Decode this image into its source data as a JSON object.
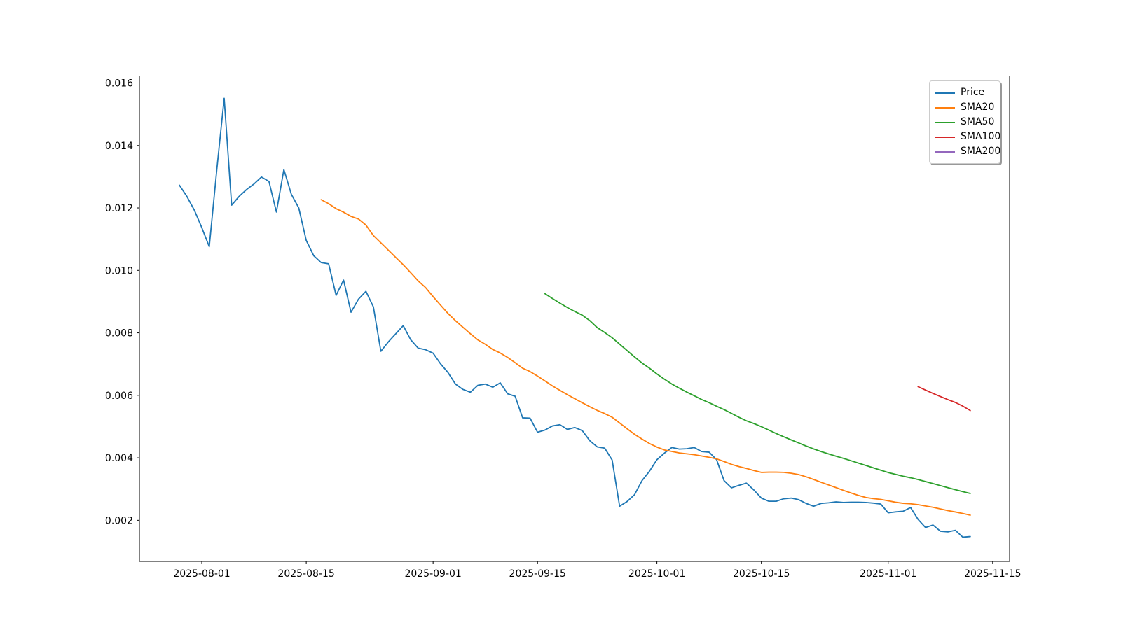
{
  "figure": {
    "background_color": "#ffffff",
    "axes_edge_color": "#000000",
    "tick_color": "#000000"
  },
  "legend": {
    "position": "upper-right",
    "entries": [
      {
        "label": "Price",
        "color": "#1f77b4"
      },
      {
        "label": "SMA20",
        "color": "#ff7f0e"
      },
      {
        "label": "SMA50",
        "color": "#2ca02c"
      },
      {
        "label": "SMA100",
        "color": "#d62728"
      },
      {
        "label": "SMA200",
        "color": "#9467bd"
      }
    ]
  },
  "chart_data": {
    "type": "line",
    "title": "",
    "xlabel": "",
    "ylabel": "",
    "grid": false,
    "legend_position": "upper-right",
    "x_axis": {
      "tick_labels": [
        "2025-08-01",
        "2025-08-15",
        "2025-09-01",
        "2025-09-15",
        "2025-10-01",
        "2025-10-15",
        "2025-11-01",
        "2025-11-15"
      ],
      "tick_indices": [
        3,
        17,
        34,
        48,
        64,
        78,
        95,
        109
      ],
      "lim_index": [
        -5.36,
        111.27
      ]
    },
    "y_axis": {
      "tick_labels": [
        "0.002",
        "0.004",
        "0.006",
        "0.008",
        "0.010",
        "0.012",
        "0.014",
        "0.016"
      ],
      "tick_values": [
        0.002,
        0.004,
        0.006,
        0.008,
        0.01,
        0.012,
        0.014,
        0.016
      ],
      "lim": [
        0.000686,
        0.016224
      ]
    },
    "dates": [
      "2025-07-29",
      "2025-07-30",
      "2025-07-31",
      "2025-08-01",
      "2025-08-02",
      "2025-08-03",
      "2025-08-04",
      "2025-08-05",
      "2025-08-06",
      "2025-08-07",
      "2025-08-08",
      "2025-08-09",
      "2025-08-10",
      "2025-08-11",
      "2025-08-12",
      "2025-08-13",
      "2025-08-14",
      "2025-08-15",
      "2025-08-16",
      "2025-08-17",
      "2025-08-18",
      "2025-08-19",
      "2025-08-20",
      "2025-08-21",
      "2025-08-22",
      "2025-08-23",
      "2025-08-24",
      "2025-08-25",
      "2025-08-26",
      "2025-08-27",
      "2025-08-28",
      "2025-08-29",
      "2025-08-30",
      "2025-08-31",
      "2025-09-01",
      "2025-09-02",
      "2025-09-03",
      "2025-09-04",
      "2025-09-05",
      "2025-09-06",
      "2025-09-07",
      "2025-09-08",
      "2025-09-09",
      "2025-09-10",
      "2025-09-11",
      "2025-09-12",
      "2025-09-13",
      "2025-09-14",
      "2025-09-15",
      "2025-09-16",
      "2025-09-17",
      "2025-09-18",
      "2025-09-19",
      "2025-09-20",
      "2025-09-21",
      "2025-09-22",
      "2025-09-23",
      "2025-09-24",
      "2025-09-25",
      "2025-09-26",
      "2025-09-27",
      "2025-09-28",
      "2025-09-29",
      "2025-09-30",
      "2025-10-01",
      "2025-10-02",
      "2025-10-03",
      "2025-10-04",
      "2025-10-05",
      "2025-10-06",
      "2025-10-07",
      "2025-10-08",
      "2025-10-09",
      "2025-10-10",
      "2025-10-11",
      "2025-10-12",
      "2025-10-13",
      "2025-10-14",
      "2025-10-15",
      "2025-10-16",
      "2025-10-17",
      "2025-10-18",
      "2025-10-19",
      "2025-10-20",
      "2025-10-21",
      "2025-10-22",
      "2025-10-23",
      "2025-10-24",
      "2025-10-25",
      "2025-10-26",
      "2025-10-27",
      "2025-10-28",
      "2025-10-29",
      "2025-10-30",
      "2025-10-31",
      "2025-11-01",
      "2025-11-02",
      "2025-11-03",
      "2025-11-04",
      "2025-11-05",
      "2025-11-06",
      "2025-11-07",
      "2025-11-08",
      "2025-11-09",
      "2025-11-10",
      "2025-11-11",
      "2025-11-12"
    ],
    "series": [
      {
        "name": "Price",
        "color": "#1f77b4",
        "start_index": 0,
        "values": [
          0.01273,
          0.01237,
          0.01193,
          0.01137,
          0.01076,
          0.0132,
          0.01551,
          0.01209,
          0.01237,
          0.01259,
          0.01277,
          0.01299,
          0.01285,
          0.01187,
          0.01323,
          0.01244,
          0.012,
          0.01096,
          0.01047,
          0.01025,
          0.01021,
          0.0092,
          0.00969,
          0.00866,
          0.00908,
          0.00933,
          0.00883,
          0.00741,
          0.00771,
          0.00797,
          0.00823,
          0.00778,
          0.00751,
          0.00746,
          0.00735,
          0.00701,
          0.00673,
          0.00636,
          0.00619,
          0.0061,
          0.00632,
          0.00636,
          0.00626,
          0.0064,
          0.00605,
          0.00597,
          0.00528,
          0.00527,
          0.00482,
          0.00489,
          0.00502,
          0.00506,
          0.00491,
          0.00497,
          0.00487,
          0.00455,
          0.00435,
          0.00431,
          0.00393,
          0.00245,
          0.0026,
          0.00282,
          0.00327,
          0.00357,
          0.00394,
          0.00415,
          0.00433,
          0.00428,
          0.00429,
          0.00433,
          0.0042,
          0.00418,
          0.00394,
          0.00327,
          0.00304,
          0.00312,
          0.00319,
          0.00297,
          0.00271,
          0.00261,
          0.00261,
          0.00269,
          0.00271,
          0.00266,
          0.00254,
          0.00245,
          0.00254,
          0.00256,
          0.00259,
          0.00257,
          0.00258,
          0.00258,
          0.00257,
          0.00255,
          0.00252,
          0.00224,
          0.00227,
          0.00229,
          0.00241,
          0.00203,
          0.00177,
          0.00185,
          0.00165,
          0.00163,
          0.00168,
          0.00146,
          0.00148
        ]
      },
      {
        "name": "SMA20",
        "color": "#ff7f0e",
        "window": 20,
        "start_index": 19,
        "values": [
          0.012264,
          0.012138,
          0.011977,
          0.011865,
          0.01173,
          0.011646,
          0.011452,
          0.011116,
          0.010883,
          0.010648,
          0.010413,
          0.010181,
          0.009926,
          0.009664,
          0.009449,
          0.009161,
          0.008888,
          0.00862,
          0.008389,
          0.008179,
          0.007971,
          0.007775,
          0.007635,
          0.007467,
          0.007355,
          0.007212,
          0.007045,
          0.006868,
          0.006761,
          0.006616,
          0.006462,
          0.006302,
          0.00616,
          0.006021,
          0.005891,
          0.005762,
          0.005636,
          0.005517,
          0.005416,
          0.005299,
          0.005117,
          0.004932,
          0.004753,
          0.0046,
          0.004458,
          0.004344,
          0.004252,
          0.004204,
          0.004155,
          0.004128,
          0.0041,
          0.004059,
          0.004015,
          0.003967,
          0.003882,
          0.00379,
          0.003719,
          0.003661,
          0.003594,
          0.003533,
          0.003541,
          0.003541,
          0.003535,
          0.003507,
          0.003463,
          0.003393,
          0.003308,
          0.003218,
          0.003132,
          0.003047,
          0.002959,
          0.002876,
          0.002798,
          0.00273,
          0.002694,
          0.002668,
          0.002624,
          0.002578,
          0.002544,
          0.002529,
          0.0025,
          0.002458,
          0.002416,
          0.002363,
          0.00231,
          0.002267,
          0.002217,
          0.002164
        ]
      },
      {
        "name": "SMA50",
        "color": "#2ca02c",
        "window": 50,
        "start_index": 49,
        "values": [
          0.009252,
          0.009098,
          0.008951,
          0.00881,
          0.008682,
          0.008565,
          0.008392,
          0.008168,
          0.008012,
          0.007843,
          0.007638,
          0.007433,
          0.007229,
          0.007036,
          0.00687,
          0.006685,
          0.006517,
          0.006362,
          0.006229,
          0.006105,
          0.005987,
          0.005866,
          0.005766,
          0.005651,
          0.005543,
          0.005422,
          0.005298,
          0.005185,
          0.005097,
          0.004997,
          0.004889,
          0.004777,
          0.004673,
          0.004573,
          0.004476,
          0.004377,
          0.004285,
          0.004201,
          0.004126,
          0.004052,
          0.003982,
          0.003908,
          0.003831,
          0.003756,
          0.003679,
          0.003605,
          0.00353,
          0.003469,
          0.00341,
          0.003362,
          0.003304,
          0.003239,
          0.003175,
          0.00311,
          0.003043,
          0.002979,
          0.002918,
          0.00286
        ]
      },
      {
        "name": "SMA100",
        "color": "#d62728",
        "window": 100,
        "start_index": 99,
        "values": [
          0.006278,
          0.006169,
          0.006063,
          0.00596,
          0.005863,
          0.005772,
          0.005655,
          0.005514
        ]
      },
      {
        "name": "SMA200",
        "color": "#9467bd",
        "window": 200,
        "start_index": null,
        "values": []
      }
    ]
  }
}
